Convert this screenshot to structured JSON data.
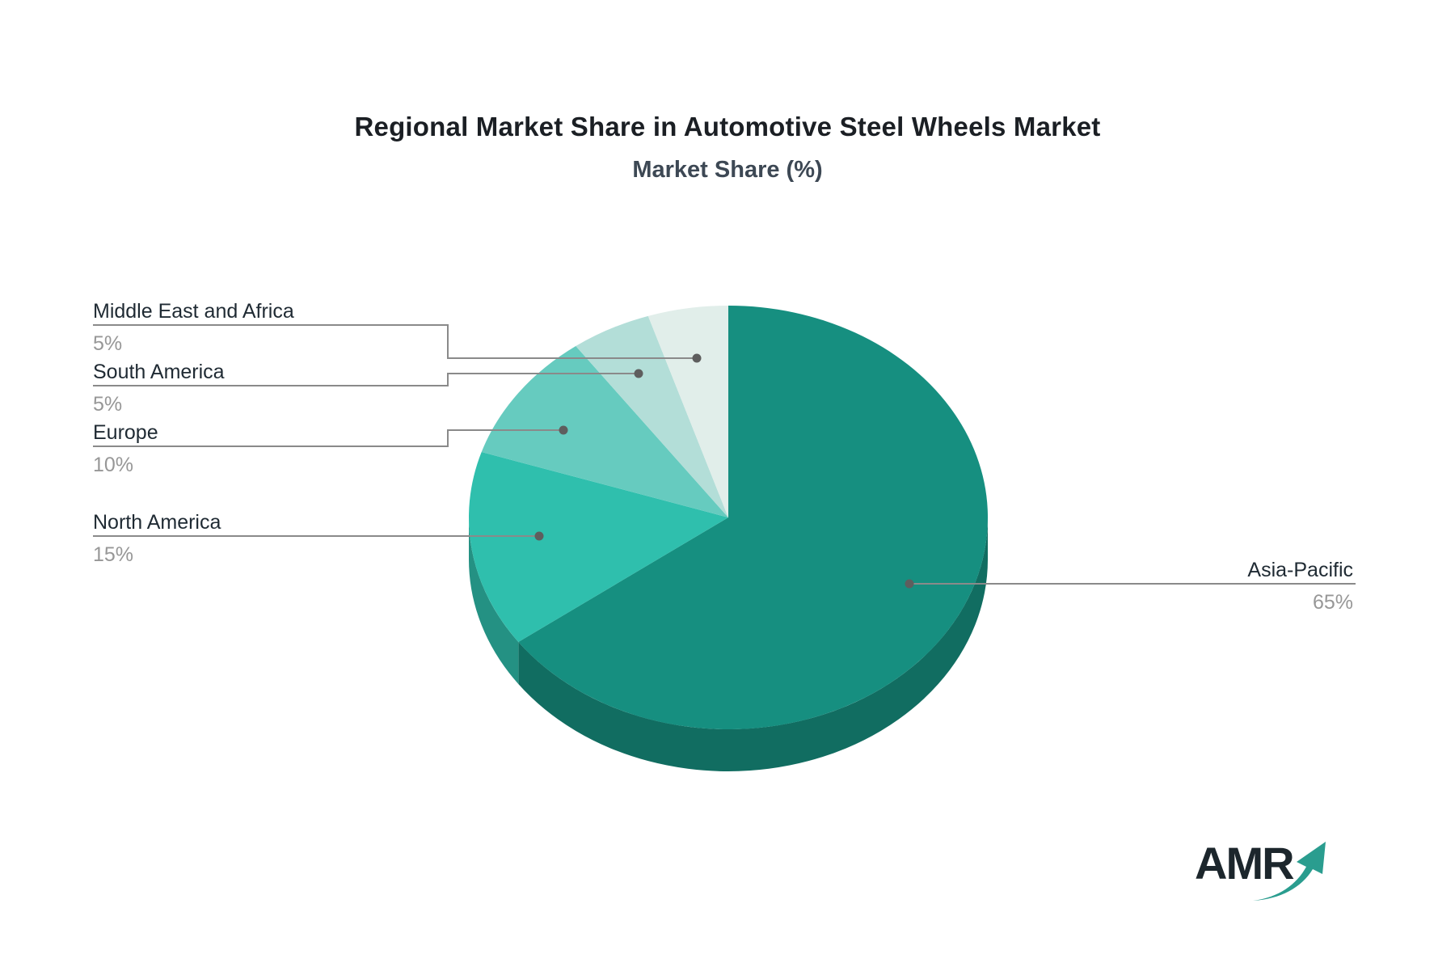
{
  "chart_data": {
    "type": "pie",
    "title": "Regional Market Share in Automotive Steel Wheels Market",
    "subtitle": "Market Share (%)",
    "unit": "%",
    "total": 100,
    "direction": "clockwise",
    "start_angle_deg": 0,
    "effect": "3d",
    "series": [
      {
        "label": "Asia-Pacific",
        "value": 65,
        "pct_label": "65%",
        "color": "#168F80"
      },
      {
        "label": "North America",
        "value": 15,
        "pct_label": "15%",
        "color": "#2FBFAD"
      },
      {
        "label": "Europe",
        "value": 10,
        "pct_label": "10%",
        "color": "#66CBBF"
      },
      {
        "label": "South America",
        "value": 5,
        "pct_label": "5%",
        "color": "#B3DED8"
      },
      {
        "label": "Middle East and Africa",
        "value": 5,
        "pct_label": "5%",
        "color": "#E1EEEA"
      }
    ],
    "style": {
      "label_line_color": "#8A8A8A",
      "label_dot_color": "#5E5E5E",
      "label_text_color": "#1F2A33",
      "pct_text_color": "#979797",
      "title_color": "#1B1F24",
      "subtitle_color": "#3D4854"
    }
  },
  "branding": {
    "logo_text": "AMR",
    "logo_text_color": "#1C262C",
    "logo_arrow_color": "#2A9D8F"
  }
}
